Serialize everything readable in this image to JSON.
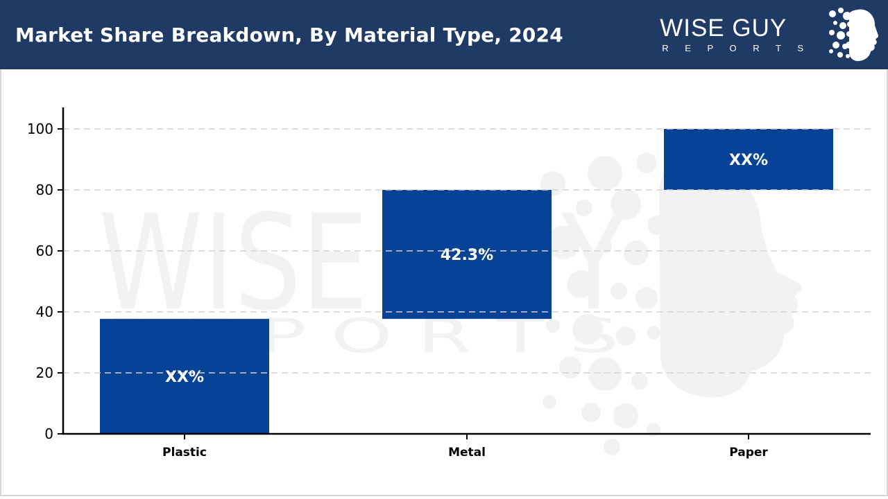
{
  "header": {
    "title": "Market Share Breakdown, By Material Type, 2024",
    "bg_color": "#203a66",
    "logo": {
      "line1": "WISE GUY",
      "line2": "R E P O R T S",
      "icon": "dotted-head-profile-icon",
      "color": "#ffffff"
    }
  },
  "watermark": {
    "line1": "WISE GUY",
    "line2": "R E P O R T S",
    "icon": "dotted-head-profile-icon",
    "color": "#f2f2f4"
  },
  "chart_data": {
    "type": "bar",
    "subtype": "waterfall",
    "title": "Market Share Breakdown, By Material Type, 2024",
    "categories": [
      "Plastic",
      "Metal",
      "Paper"
    ],
    "series": [
      {
        "name": "Market share (%)",
        "segments": [
          {
            "category": "Plastic",
            "start": 0,
            "end": 37.7,
            "value": 37.7,
            "label": "XX%"
          },
          {
            "category": "Metal",
            "start": 37.7,
            "end": 80,
            "value": 42.3,
            "label": "42.3%"
          },
          {
            "category": "Paper",
            "start": 80,
            "end": 100,
            "value": 20,
            "label": "XX%"
          }
        ]
      }
    ],
    "xlabel": "",
    "ylabel": "",
    "yticks": [
      0,
      20,
      40,
      60,
      80,
      100
    ],
    "ylim": [
      0,
      107
    ],
    "grid": true,
    "gridline_style": "dashed",
    "legend": false,
    "bar_color": "#064396",
    "bar_label_color": "#ffffff",
    "axis_color": "#000000",
    "gridline_color": "#d2d2d2",
    "tick_label_color": "#000000"
  }
}
